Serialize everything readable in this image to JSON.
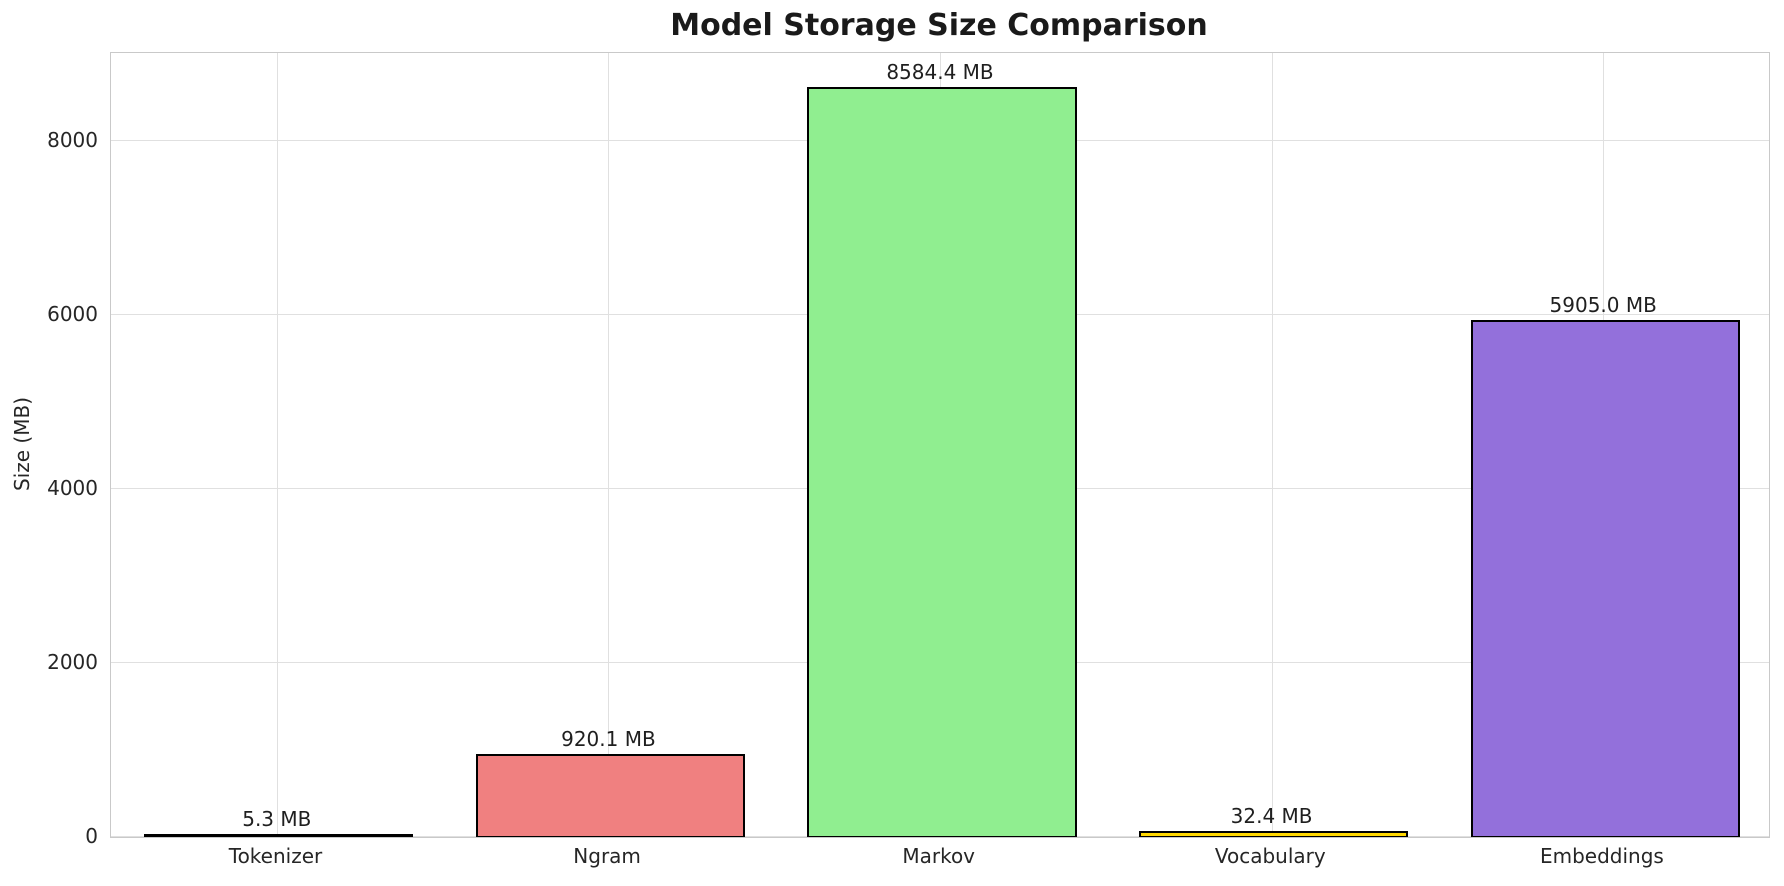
{
  "chart_data": {
    "type": "bar",
    "title": "Model Storage Size Comparison",
    "xlabel": "",
    "ylabel": "Size (MB)",
    "categories": [
      "Tokenizer",
      "Ngram",
      "Markov",
      "Vocabulary",
      "Embeddings"
    ],
    "values": [
      5.3,
      920.1,
      8584.4,
      32.4,
      5905.0
    ],
    "value_labels": [
      "5.3 MB",
      "920.1 MB",
      "8584.4 MB",
      "32.4 MB",
      "5905.0 MB"
    ],
    "bar_colors": [
      "#87ceeb",
      "#f08080",
      "#90ee90",
      "#ffd700",
      "#9370db"
    ],
    "bar_edge_color": "#000000",
    "yticks": [
      0,
      2000,
      4000,
      6000,
      8000
    ],
    "ytick_labels": [
      "0",
      "2000",
      "4000",
      "6000",
      "8000"
    ],
    "ylim": [
      0,
      9013
    ],
    "grid": true,
    "grid_color": "#e0e0e0",
    "background": "#ffffff",
    "legend_position": "none"
  }
}
